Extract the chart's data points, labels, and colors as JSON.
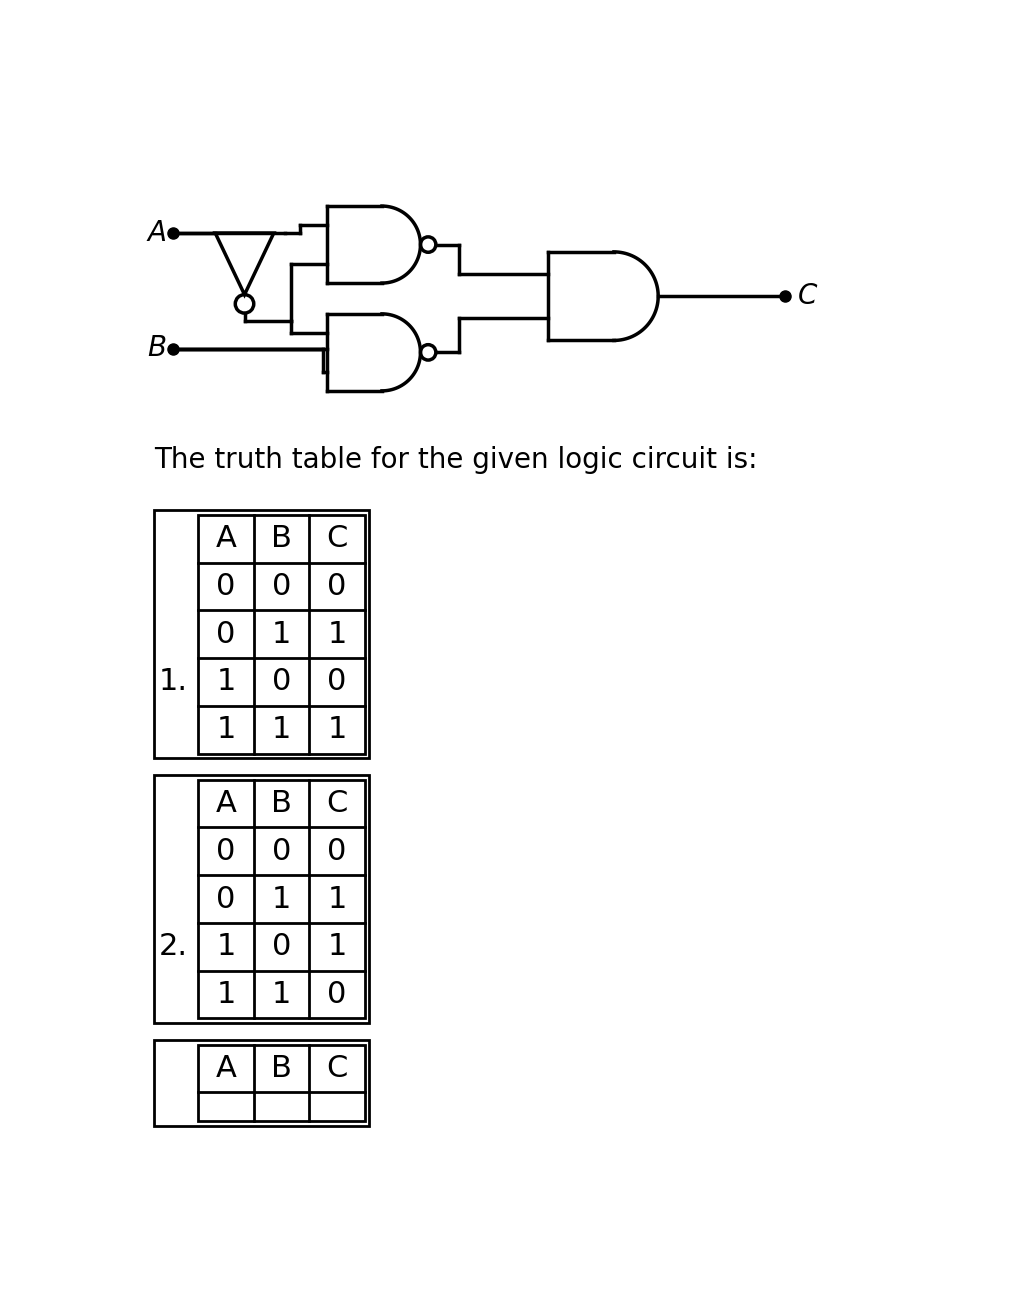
{
  "title_text": "The truth table for the given logic circuit is:",
  "table1_label": "1.",
  "table2_label": "2.",
  "headers": [
    "A",
    "B",
    "C"
  ],
  "table1_rows": [
    [
      "0",
      "0",
      "0"
    ],
    [
      "0",
      "1",
      "1"
    ],
    [
      "1",
      "0",
      "0"
    ],
    [
      "1",
      "1",
      "1"
    ]
  ],
  "table2_rows": [
    [
      "0",
      "0",
      "0"
    ],
    [
      "0",
      "1",
      "1"
    ],
    [
      "1",
      "0",
      "1"
    ],
    [
      "1",
      "1",
      "0"
    ]
  ],
  "table3_headers": [
    "A",
    "B",
    "C"
  ],
  "bg_color": "#ffffff",
  "text_color": "#000000",
  "line_color": "#000000",
  "font_size_table": 22,
  "font_size_title": 20,
  "font_size_label": 22,
  "font_size_circuit": 20
}
